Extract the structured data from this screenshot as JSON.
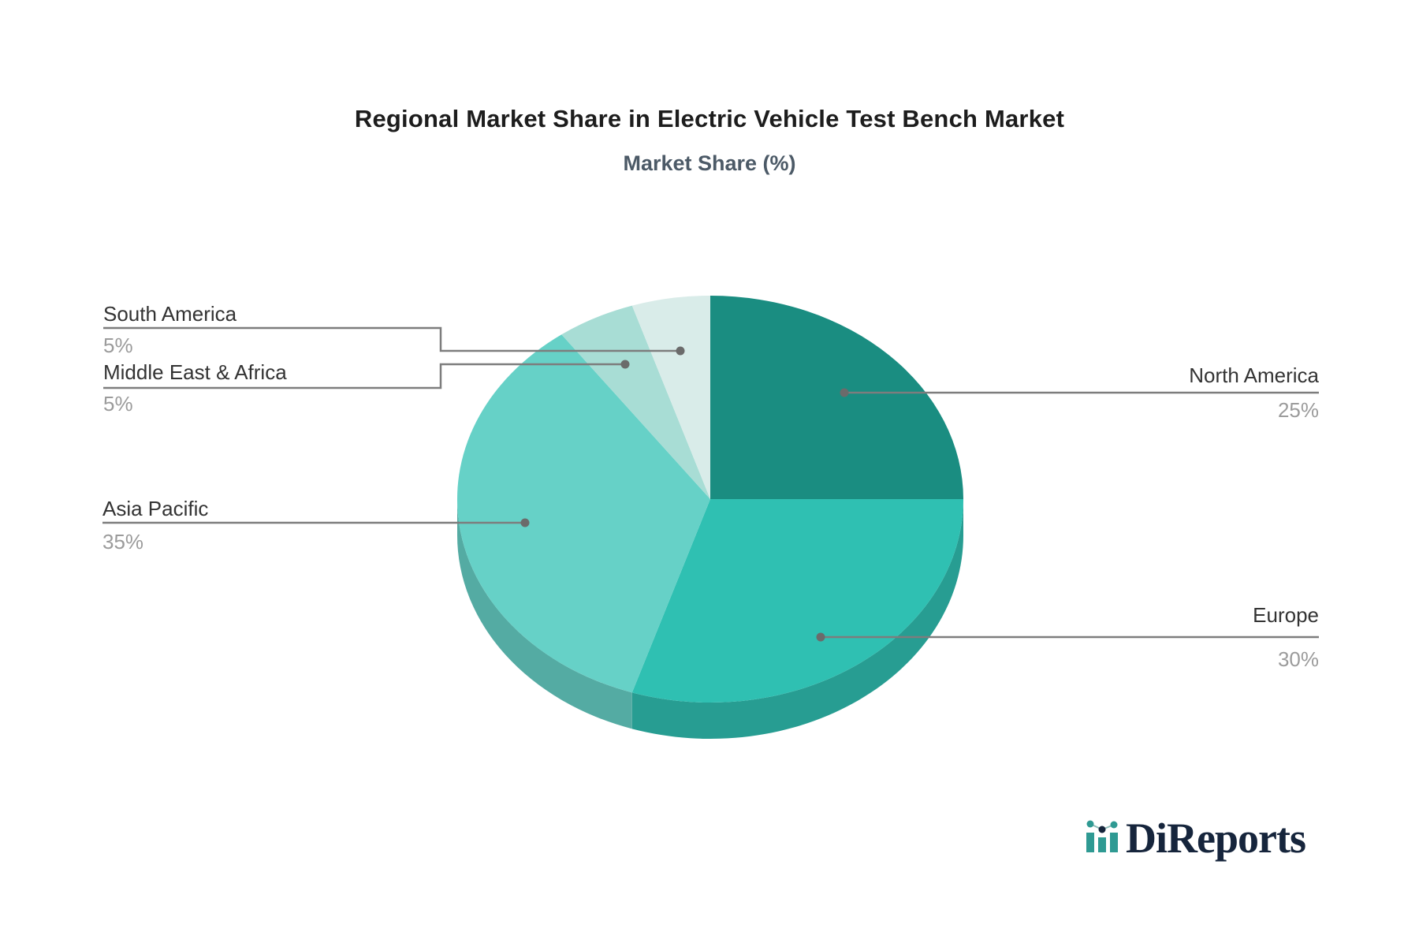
{
  "page": {
    "title": "Regional Market Share in Electric Vehicle Test Bench Market",
    "subtitle": "Market Share (%)"
  },
  "chart_data": {
    "type": "pie",
    "style": "3d",
    "title": "Regional Market Share in Electric Vehicle Test Bench Market",
    "subtitle": "Market Share (%)",
    "unit": "%",
    "start_angle": "12-o-clock, clockwise",
    "legend_position": "none (leader-line labels)",
    "slices": [
      {
        "label": "North America",
        "value": 25,
        "pct_label": "25%",
        "color": "#1a8d81"
      },
      {
        "label": "Europe",
        "value": 30,
        "pct_label": "30%",
        "color": "#2fc0b2"
      },
      {
        "label": "Asia Pacific",
        "value": 35,
        "pct_label": "35%",
        "color": "#66d1c7"
      },
      {
        "label": "Middle East & Africa",
        "value": 5,
        "pct_label": "5%",
        "color": "#a8ddd5"
      },
      {
        "label": "South America",
        "value": 5,
        "pct_label": "5%",
        "color": "#d9ece9"
      }
    ]
  },
  "colors": {
    "leader_line": "#7d7d7d",
    "leader_dot": "#6b6b6b",
    "label_text": "#333333",
    "pct_text": "#9b9b9b",
    "title_text": "#1d1d1d",
    "subtitle_text": "#4c5a67",
    "logo_navy": "#16253c",
    "logo_teal": "#2f9a93"
  },
  "branding": {
    "logo_text": "DiReports"
  }
}
